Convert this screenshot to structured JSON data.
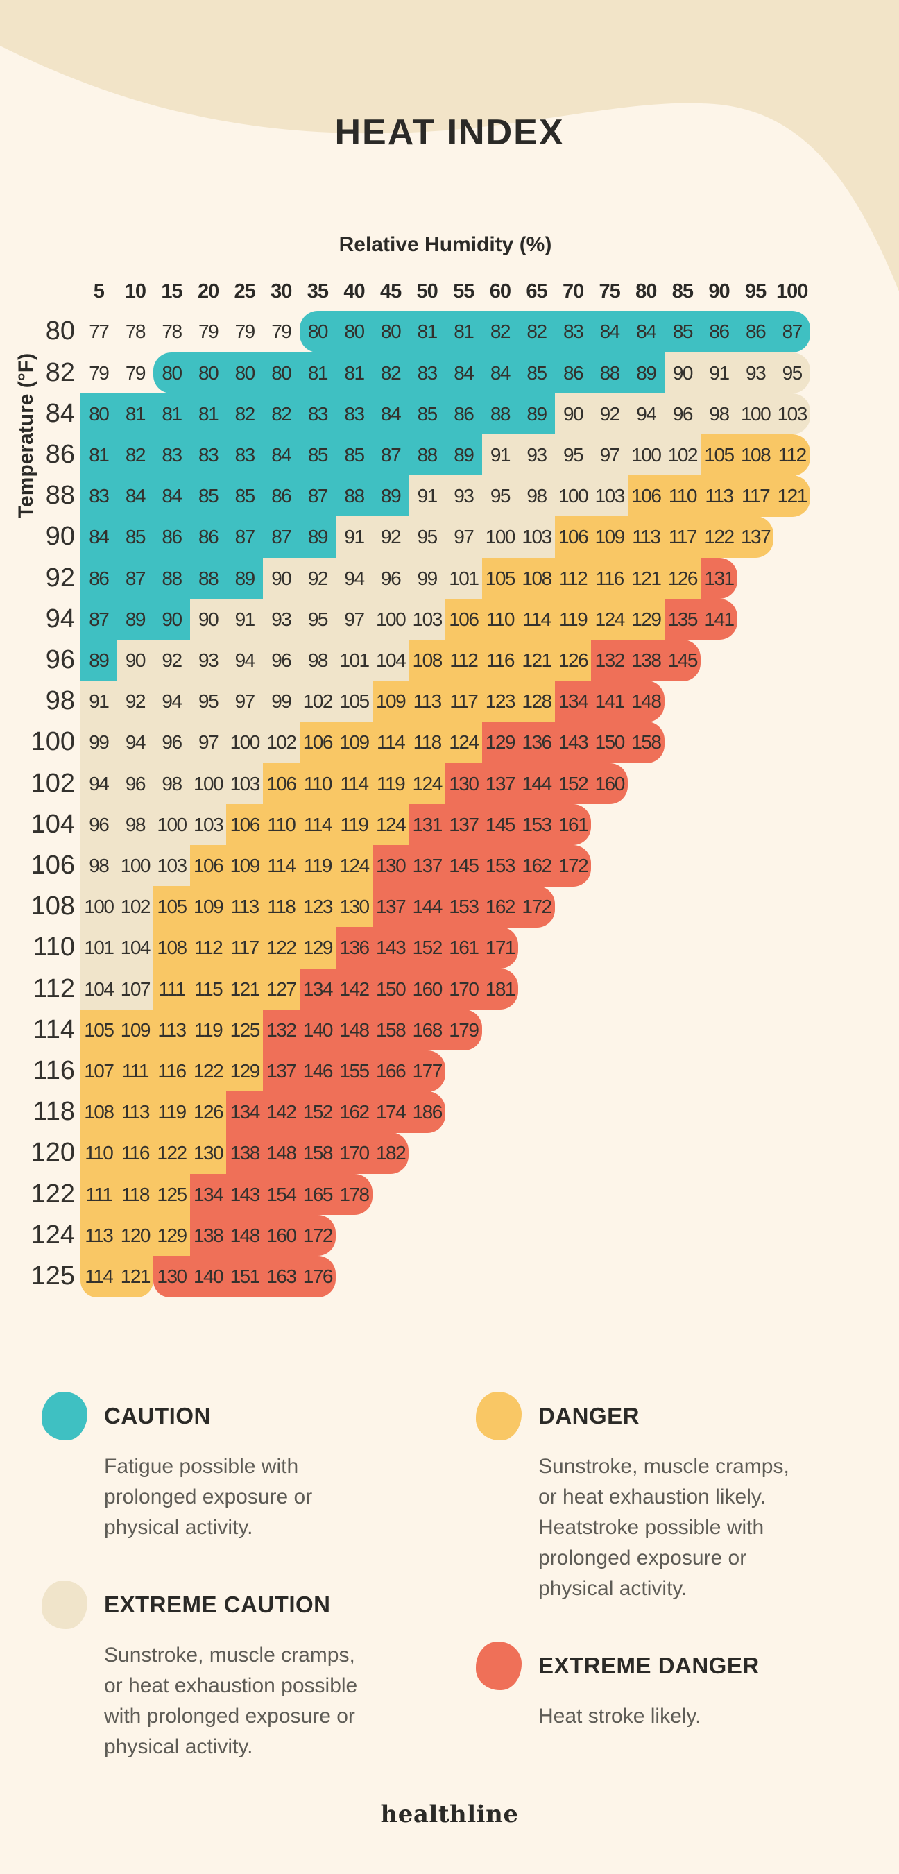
{
  "page": {
    "title": "HEAT INDEX",
    "brand": "healthline"
  },
  "axes": {
    "x": "Relative Humidity (%)",
    "y": "Temperature (°F)"
  },
  "colors": {
    "page_bg": "#fdf5e9",
    "top_wave": "#f2e4c8",
    "text_dark": "#2b2a27",
    "cell_text": "#33312d",
    "body_text": "#5e5c56",
    "caution": "#3fc0c2",
    "extreme_caution": "#f0e4ca",
    "danger": "#f9c765",
    "extreme_danger": "#ef7058"
  },
  "legend": [
    {
      "id": "caution",
      "label": "CAUTION",
      "color_key": "caution",
      "column": "left",
      "desc": "Fatigue possible with\nprolonged exposure or\nphysical activity."
    },
    {
      "id": "extreme-caution",
      "label": "EXTREME CAUTION",
      "color_key": "extreme_caution",
      "column": "left",
      "desc": "Sunstroke, muscle cramps,\nor heat exhaustion possible\nwith prolonged exposure or\nphysical activity."
    },
    {
      "id": "danger",
      "label": "DANGER",
      "color_key": "danger",
      "column": "right",
      "desc": "Sunstroke, muscle cramps,\nor heat exhaustion likely.\nHeatstroke possible with\nprolonged exposure or\nphysical activity."
    },
    {
      "id": "extreme-danger",
      "label": "EXTREME DANGER",
      "color_key": "extreme_danger",
      "column": "right",
      "desc": "Heat stroke likely."
    }
  ],
  "chart_data": {
    "type": "heatmap",
    "title": "HEAT INDEX",
    "xlabel": "Relative Humidity (%)",
    "ylabel": "Temperature (°F)",
    "humidity_percent": [
      5,
      10,
      15,
      20,
      25,
      30,
      35,
      40,
      45,
      50,
      55,
      60,
      65,
      70,
      75,
      80,
      85,
      90,
      95,
      100
    ],
    "zone_key": {
      "b": "none",
      "c": "caution",
      "e": "extreme_caution",
      "d": "danger",
      "x": "extreme_danger"
    },
    "rows": [
      {
        "temp": 80,
        "values": [
          77,
          78,
          78,
          79,
          79,
          79,
          80,
          80,
          80,
          81,
          81,
          82,
          82,
          83,
          84,
          84,
          85,
          86,
          86,
          87
        ],
        "zones": "bbbbbbcccccccccccccc"
      },
      {
        "temp": 82,
        "values": [
          79,
          79,
          80,
          80,
          80,
          80,
          81,
          81,
          82,
          83,
          84,
          84,
          85,
          86,
          88,
          89,
          90,
          91,
          93,
          95
        ],
        "zones": "bbcccccccccccccceeee"
      },
      {
        "temp": 84,
        "values": [
          80,
          81,
          81,
          81,
          82,
          82,
          83,
          83,
          84,
          85,
          86,
          88,
          89,
          90,
          92,
          94,
          96,
          98,
          100,
          103
        ],
        "zones": "ccccccccccccceeeeeee"
      },
      {
        "temp": 86,
        "values": [
          81,
          82,
          83,
          83,
          83,
          84,
          85,
          85,
          87,
          88,
          89,
          91,
          93,
          95,
          97,
          100,
          102,
          105,
          108,
          112
        ],
        "zones": "ccccccccccceeeeeeddd"
      },
      {
        "temp": 88,
        "values": [
          83,
          84,
          84,
          85,
          85,
          86,
          87,
          88,
          89,
          91,
          93,
          95,
          98,
          100,
          103,
          106,
          110,
          113,
          117,
          121
        ],
        "zones": "ccccccccceeeeeeddddd"
      },
      {
        "temp": 90,
        "values": [
          84,
          85,
          86,
          86,
          87,
          87,
          89,
          91,
          92,
          95,
          97,
          100,
          103,
          106,
          109,
          113,
          117,
          122,
          137
        ],
        "zones": "ccccccceeeeeedddddd"
      },
      {
        "temp": 92,
        "values": [
          86,
          87,
          88,
          88,
          89,
          90,
          92,
          94,
          96,
          99,
          101,
          105,
          108,
          112,
          116,
          121,
          126,
          131
        ],
        "zones": "ccccceeeeeeddddddx"
      },
      {
        "temp": 94,
        "values": [
          87,
          89,
          90,
          90,
          91,
          93,
          95,
          97,
          100,
          103,
          106,
          110,
          114,
          119,
          124,
          129,
          135,
          141
        ],
        "zones": "ccceeeeeeeddddddxx"
      },
      {
        "temp": 96,
        "values": [
          89,
          90,
          92,
          93,
          94,
          96,
          98,
          101,
          104,
          108,
          112,
          116,
          121,
          126,
          132,
          138,
          145
        ],
        "zones": "ceeeeeeeedddddxxx"
      },
      {
        "temp": 98,
        "values": [
          91,
          92,
          94,
          95,
          97,
          99,
          102,
          105,
          109,
          113,
          117,
          123,
          128,
          134,
          141,
          148
        ],
        "zones": "eeeeeeeedddddxxx"
      },
      {
        "temp": 100,
        "values": [
          99,
          94,
          96,
          97,
          100,
          102,
          106,
          109,
          114,
          118,
          124,
          129,
          136,
          143,
          150,
          158
        ],
        "zones": "eeeeeedddddxxxxx"
      },
      {
        "temp": 102,
        "values": [
          94,
          96,
          98,
          100,
          103,
          106,
          110,
          114,
          119,
          124,
          130,
          137,
          144,
          152,
          160
        ],
        "zones": "eeeeedddddxxxxx"
      },
      {
        "temp": 104,
        "values": [
          96,
          98,
          100,
          103,
          106,
          110,
          114,
          119,
          124,
          131,
          137,
          145,
          153,
          161
        ],
        "zones": "eeeedddddxxxxx"
      },
      {
        "temp": 106,
        "values": [
          98,
          100,
          103,
          106,
          109,
          114,
          119,
          124,
          130,
          137,
          145,
          153,
          162,
          172
        ],
        "zones": "eeedddddxxxxxx"
      },
      {
        "temp": 108,
        "values": [
          100,
          102,
          105,
          109,
          113,
          118,
          123,
          130,
          137,
          144,
          153,
          162,
          172
        ],
        "zones": "eeddddddxxxxx"
      },
      {
        "temp": 110,
        "values": [
          101,
          104,
          108,
          112,
          117,
          122,
          129,
          136,
          143,
          152,
          161,
          171
        ],
        "zones": "eedddddxxxxx"
      },
      {
        "temp": 112,
        "values": [
          104,
          107,
          111,
          115,
          121,
          127,
          134,
          142,
          150,
          160,
          170,
          181
        ],
        "zones": "eeddddxxxxxx"
      },
      {
        "temp": 114,
        "values": [
          105,
          109,
          113,
          119,
          125,
          132,
          140,
          148,
          158,
          168,
          179
        ],
        "zones": "dddddxxxxxx"
      },
      {
        "temp": 116,
        "values": [
          107,
          111,
          116,
          122,
          129,
          137,
          146,
          155,
          166,
          177
        ],
        "zones": "dddddxxxxx"
      },
      {
        "temp": 118,
        "values": [
          108,
          113,
          119,
          126,
          134,
          142,
          152,
          162,
          174,
          186
        ],
        "zones": "ddddxxxxxx"
      },
      {
        "temp": 120,
        "values": [
          110,
          116,
          122,
          130,
          138,
          148,
          158,
          170,
          182
        ],
        "zones": "ddddxxxxx"
      },
      {
        "temp": 122,
        "values": [
          111,
          118,
          125,
          134,
          143,
          154,
          165,
          178
        ],
        "zones": "dddxxxxx"
      },
      {
        "temp": 124,
        "values": [
          113,
          120,
          129,
          138,
          148,
          160,
          172
        ],
        "zones": "dddxxxx"
      },
      {
        "temp": 125,
        "values": [
          114,
          121,
          130,
          140,
          151,
          163,
          176
        ],
        "zones": "ddxxxxx"
      }
    ]
  }
}
